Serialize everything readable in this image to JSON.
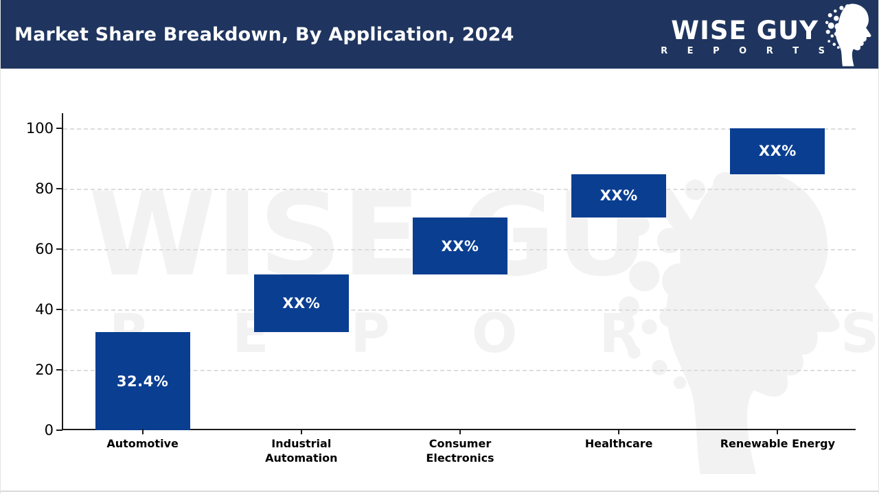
{
  "header": {
    "title": "Market Share Breakdown, By Application, 2024",
    "brand_line1": "WISE GUY",
    "brand_line2": "R E P O R T S"
  },
  "watermark": {
    "line1": "WISE GUY",
    "line2": "R E P O R T S"
  },
  "colors": {
    "header_bg": "#1f355f",
    "bar": "#0a3e91",
    "grid": "#dcdcdc",
    "axis": "#1a1a1a",
    "bar_label": "#ffffff",
    "watermark": "#f2f2f3"
  },
  "chart_data": {
    "type": "bar",
    "subtype": "waterfall",
    "title": "Market Share Breakdown, By Application, 2024",
    "categories": [
      "Automotive",
      "Industrial Automation",
      "Consumer Electronics",
      "Healthcare",
      "Renewable Energy"
    ],
    "segments": [
      {
        "category": "Automotive",
        "start": 0,
        "end": 32.4,
        "label": "32.4%"
      },
      {
        "category": "Industrial Automation",
        "start": 32.4,
        "end": 51.5,
        "label": "XX%"
      },
      {
        "category": "Consumer Electronics",
        "start": 51.5,
        "end": 70.5,
        "label": "XX%"
      },
      {
        "category": "Healthcare",
        "start": 70.5,
        "end": 84.8,
        "label": "XX%"
      },
      {
        "category": "Renewable Energy",
        "start": 84.8,
        "end": 100,
        "label": "XX%"
      }
    ],
    "yticks": [
      0,
      20,
      40,
      60,
      80,
      100
    ],
    "ylim": [
      0,
      105
    ],
    "xlabel": "",
    "ylabel": "",
    "grid": "horizontal-dashed",
    "legend": "none"
  }
}
